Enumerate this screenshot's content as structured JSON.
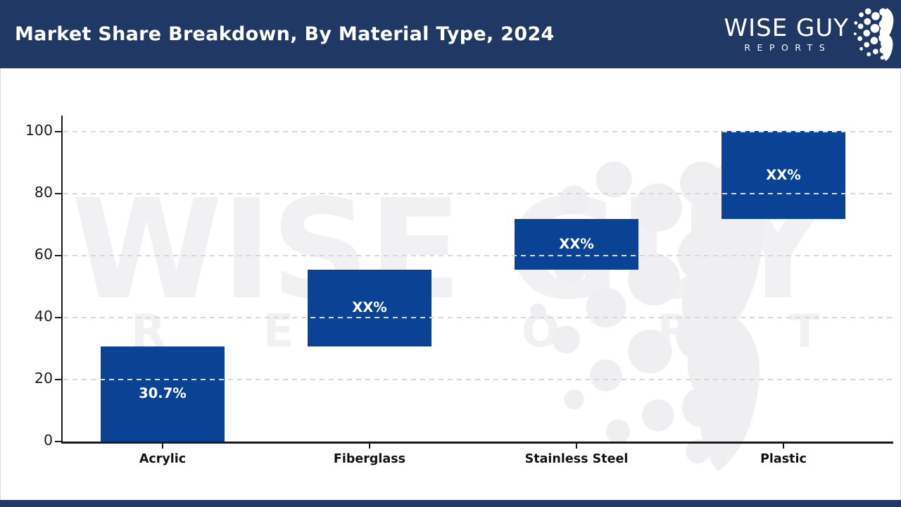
{
  "header": {
    "title": "Market Share Breakdown, By Material Type, 2024"
  },
  "logo": {
    "wordmark": "WISE GUY",
    "subtext": "REPORTS"
  },
  "watermark": {
    "wordmark": "WISE GUY",
    "subtext": "R E P O R T S"
  },
  "colors": {
    "header_navy": "#1f3864",
    "bar_blue": "#0a4296",
    "watermark_gray": "#f1f1f3",
    "gridline_gray": "#d9d9d9",
    "axis_black": "#1a1a1a",
    "value_label_white": "#ffffff"
  },
  "chart_data": {
    "type": "bar",
    "subtype": "waterfall",
    "title": "Market Share Breakdown, By Material Type, 2024",
    "categories": [
      "Acrylic",
      "Fiberglass",
      "Stainless Steel",
      "Plastic"
    ],
    "segments": [
      {
        "category": "Acrylic",
        "start": 0,
        "end": 30.7,
        "label": "30.7%"
      },
      {
        "category": "Fiberglass",
        "start": 30.7,
        "end": 55.5,
        "label": "XX%"
      },
      {
        "category": "Stainless Steel",
        "start": 55.5,
        "end": 71.8,
        "label": "XX%"
      },
      {
        "category": "Plastic",
        "start": 71.8,
        "end": 100.2,
        "label": "XX%"
      }
    ],
    "yticks": [
      0,
      20,
      40,
      60,
      80,
      100
    ],
    "ylim": [
      0,
      100
    ],
    "xlabel": "",
    "ylabel": "",
    "grid": "dashed-horizontal",
    "legend": "none",
    "bar_color": "#0a4296",
    "value_label_color": "#ffffff"
  }
}
